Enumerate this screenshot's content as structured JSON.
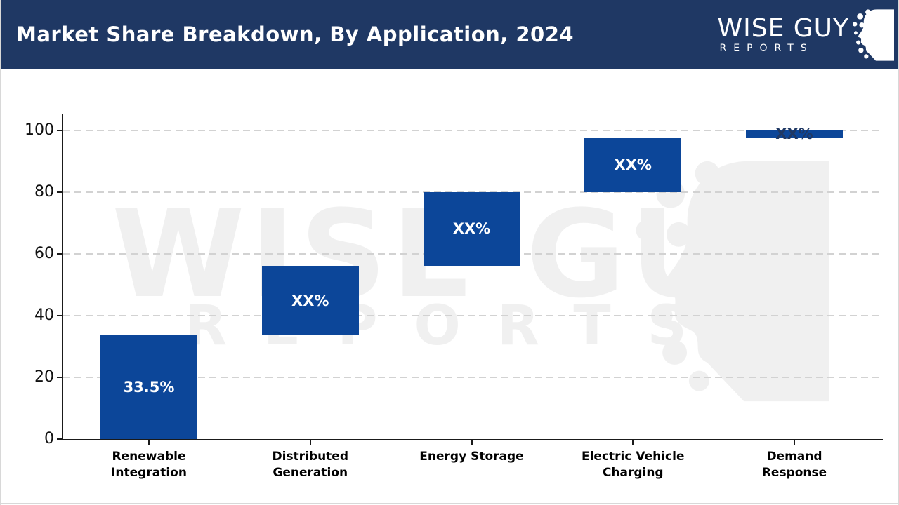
{
  "header": {
    "title": "Market Share Breakdown, By Application, 2024",
    "bg_color": "#1f3864",
    "logo": {
      "line1": "WISE GUY",
      "line2": "REPORTS"
    }
  },
  "watermark": {
    "line1": "WISE GUY",
    "line2": "REPORTS"
  },
  "colors": {
    "header_bg": "#1f3864",
    "bar_blue": "#0c4699",
    "gridline_gray": "#d2d2d2",
    "axis_black": "#1a1a1a",
    "watermark_gray": "#f0f0f0",
    "label_white": "#ffffff",
    "last_label_navy": "#1f3864"
  },
  "chart_data": {
    "type": "bar",
    "subtype": "waterfall",
    "title": "Market Share Breakdown, By Application, 2024",
    "categories": [
      "Renewable Integration",
      "Distributed Generation",
      "Energy Storage",
      "Electric Vehicle Charging",
      "Demand Response"
    ],
    "segments": [
      {
        "category": "Renewable Integration",
        "start": 0,
        "end": 33.5,
        "value_label": "33.5%",
        "label_color": "#ffffff"
      },
      {
        "category": "Distributed Generation",
        "start": 33.5,
        "end": 56,
        "value_label": "XX%",
        "label_color": "#ffffff"
      },
      {
        "category": "Energy Storage",
        "start": 56,
        "end": 80,
        "value_label": "XX%",
        "label_color": "#ffffff"
      },
      {
        "category": "Electric Vehicle Charging",
        "start": 80,
        "end": 97.5,
        "value_label": "XX%",
        "label_color": "#ffffff"
      },
      {
        "category": "Demand Response",
        "start": 97.5,
        "end": 100,
        "value_label": "XX%",
        "label_color": "#1f3864"
      }
    ],
    "y_ticks": [
      0,
      20,
      40,
      60,
      80,
      100
    ],
    "ylim": [
      0,
      105
    ],
    "xlabel": "",
    "ylabel": "",
    "grid": "horizontal-dashed",
    "legend": "none",
    "bar_color": "#0c4699"
  }
}
